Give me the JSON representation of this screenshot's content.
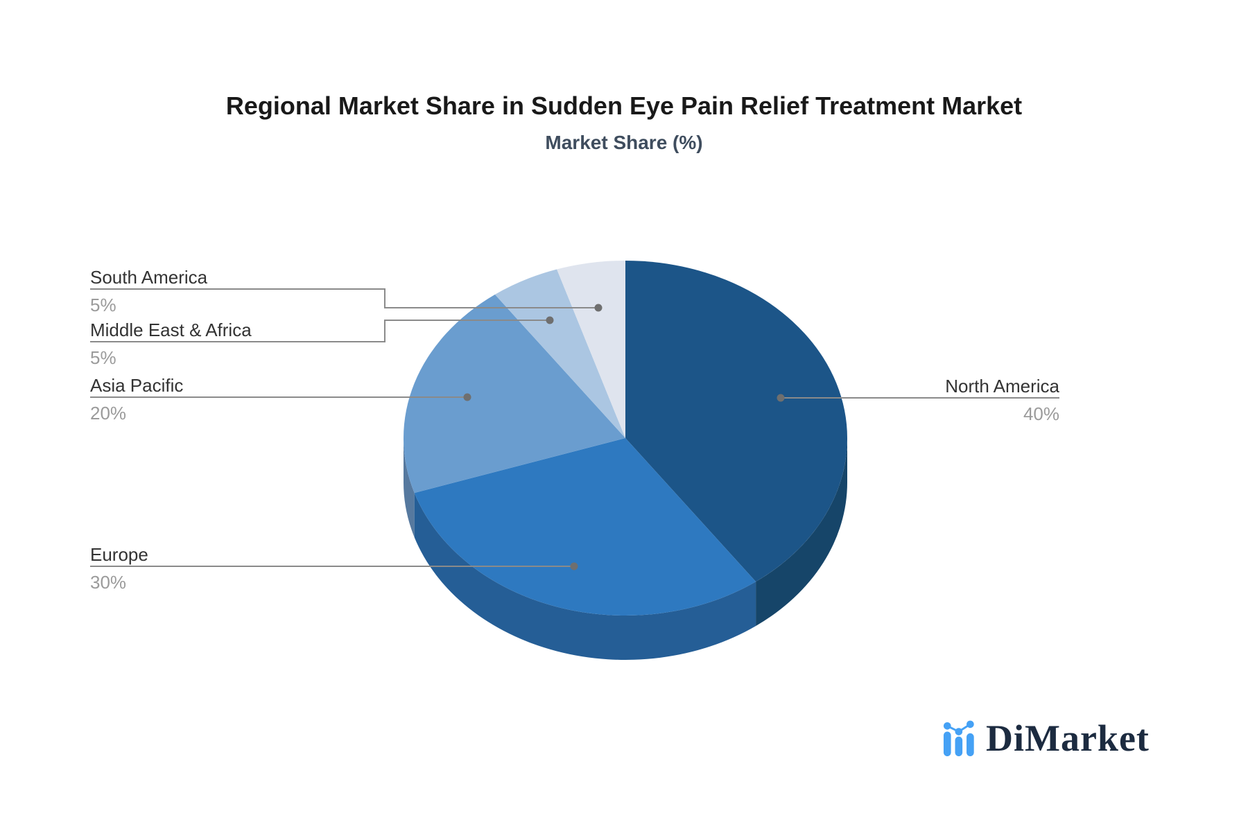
{
  "chart_data": {
    "type": "pie",
    "style": "3d",
    "title": "Regional Market Share in Sudden Eye Pain Relief Treatment Market",
    "subtitle": "Market Share (%)",
    "unit": "%",
    "start_angle_deg": 0,
    "direction": "clockwise",
    "legend_position": "none",
    "label_style": "leader-lines",
    "series": [
      {
        "name": "North America",
        "value": 40,
        "color": "#1c5588",
        "side_color": "#164569"
      },
      {
        "name": "Europe",
        "value": 30,
        "color": "#2e79c0",
        "side_color": "#255e96"
      },
      {
        "name": "Asia Pacific",
        "value": 20,
        "color": "#6a9dcf",
        "side_color": "#56799f"
      },
      {
        "name": "Middle East & Africa",
        "value": 5,
        "color": "#abc6e2"
      },
      {
        "name": "South America",
        "value": 5,
        "color": "#dfe4ee"
      }
    ]
  },
  "connector_color": "#8a8a8a",
  "dot_color": "#6f6f6f",
  "logo": {
    "text": "DiMarket",
    "icon_color": "#45a1f5"
  }
}
